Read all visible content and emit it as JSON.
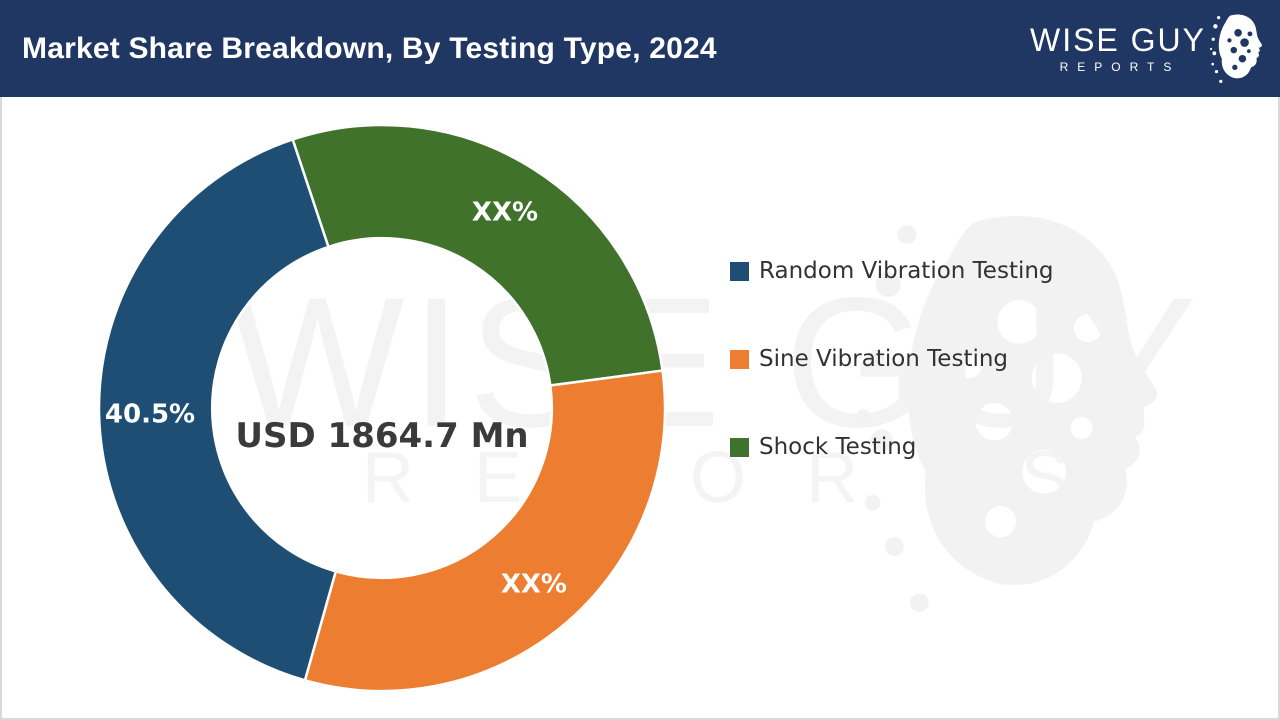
{
  "header": {
    "title": "Market Share Breakdown, By Testing Type, 2024",
    "background_color": "#203764"
  },
  "branding": {
    "name": "WISE GUY",
    "sub": "REPORTS",
    "face_icon": "dotted-head-profile"
  },
  "watermark": {
    "line1": "WISE GUY",
    "line2": "REPORTS"
  },
  "chart_data": {
    "type": "pie",
    "subtype": "donut",
    "title": "Market Share Breakdown, By Testing Type, 2024",
    "center_label": "USD 1864.7 Mn",
    "center_label_color": "#3a3a3a",
    "hole_ratio": 0.6,
    "start_angle_deg": -18.4,
    "direction": "clockwise",
    "slice_label_color": "#ffffff",
    "slice_label_radius_ratio": 0.82,
    "segments": [
      {
        "name": "Shock Testing",
        "value_pct": 28.0,
        "label": "XX%",
        "color": "#41722b"
      },
      {
        "name": "Sine Vibration Testing",
        "value_pct": 31.5,
        "label": "XX%",
        "color": "#ed7d31"
      },
      {
        "name": "Random Vibration Testing",
        "value_pct": 40.5,
        "label": "40.5%",
        "color": "#1f4e74"
      }
    ],
    "legend": {
      "position": "right",
      "items": [
        {
          "label": "Random Vibration Testing",
          "color": "#1f4e74"
        },
        {
          "label": "Sine Vibration Testing",
          "color": "#ed7d31"
        },
        {
          "label": "Shock Testing",
          "color": "#41722b"
        }
      ]
    }
  }
}
